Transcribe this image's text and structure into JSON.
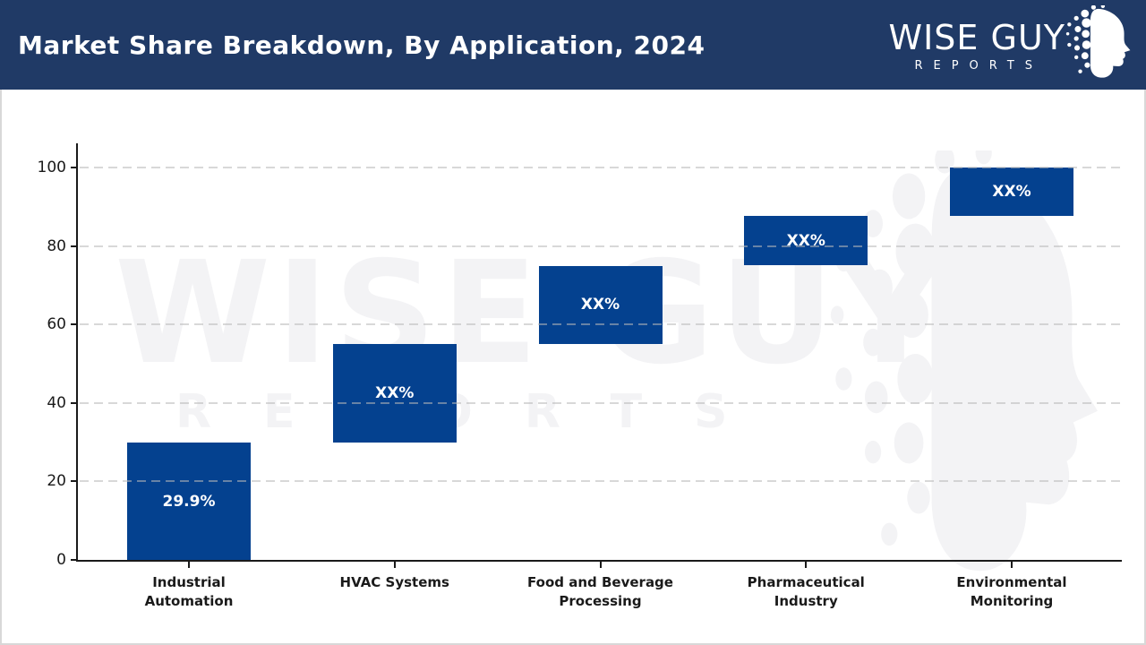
{
  "header": {
    "title": "Market Share Breakdown, By Application, 2024",
    "brand_name": "WISE GUY",
    "brand_sub": "REPORTS",
    "bg_color": "#203a66"
  },
  "watermark": {
    "line1": "WISE GUY",
    "line2": "REPORTS"
  },
  "chart_data": {
    "type": "bar",
    "subtype": "waterfall",
    "title": "Market Share Breakdown, By Application, 2024",
    "categories": [
      "Industrial\nAutomation",
      "HVAC Systems",
      "Food and Beverage\nProcessing",
      "Pharmaceutical\nIndustry",
      "Environmental\nMonitoring"
    ],
    "bars": [
      {
        "label": "29.9%",
        "start": 0,
        "end": 29.9
      },
      {
        "label": "XX%",
        "start": 29.9,
        "end": 55
      },
      {
        "label": "XX%",
        "start": 55,
        "end": 75
      },
      {
        "label": "XX%",
        "start": 75,
        "end": 87.6
      },
      {
        "label": "XX%",
        "start": 87.6,
        "end": 100
      }
    ],
    "xlabel": "",
    "ylabel": "",
    "ylim": [
      0,
      105.5
    ],
    "yticks": [
      0,
      20,
      40,
      60,
      80,
      100
    ],
    "grid": "horizontal-dashed",
    "legend": "none",
    "bar_color": "#04418f",
    "bar_label_color": "#ffffff",
    "axis_color": "#1a1a1a",
    "gridline_color": "#dcdcdc"
  }
}
